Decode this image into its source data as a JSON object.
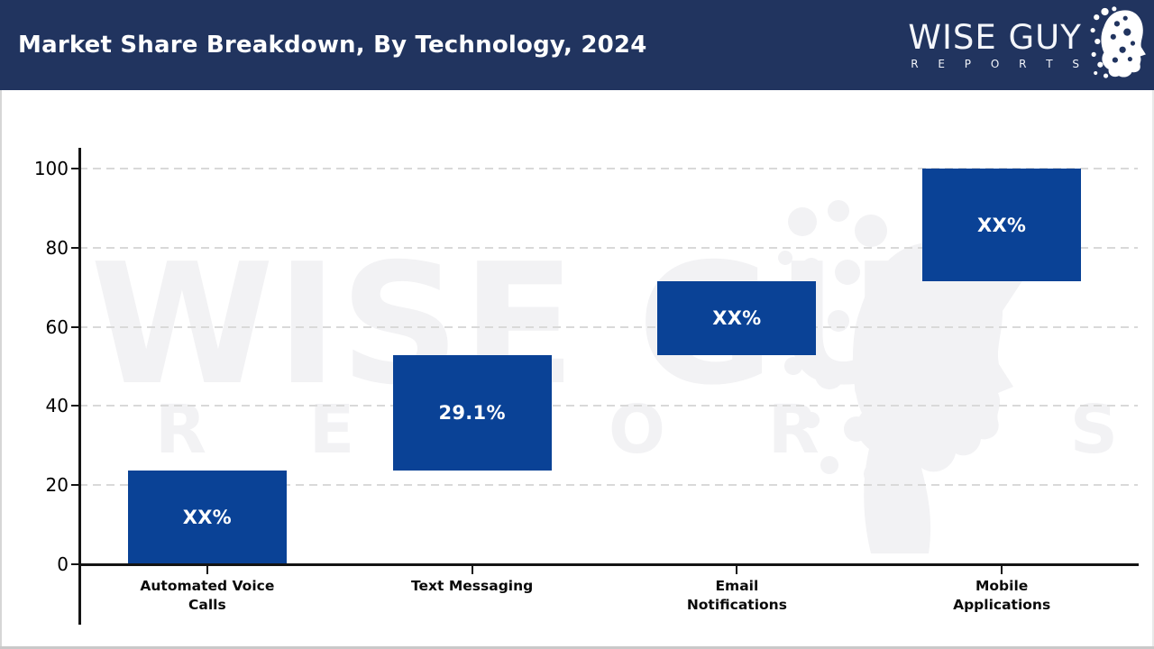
{
  "header": {
    "title": "Market Share Breakdown, By Technology, 2024",
    "bg_color": "#21345f",
    "logo": {
      "line1": "WISE GUY",
      "line2": "R E P O R T S"
    }
  },
  "watermark": {
    "line1": "WISE GUY",
    "line2": "R E P O R T S"
  },
  "chart_data": {
    "type": "bar",
    "variant": "floating-waterfall",
    "title": "Market Share Breakdown, By Technology, 2024",
    "categories": [
      "Automated Voice Calls",
      "Text Messaging",
      "Email Notifications",
      "Mobile Applications"
    ],
    "yticks": [
      0,
      20,
      40,
      60,
      80,
      100
    ],
    "ylim": [
      0,
      100
    ],
    "grid": {
      "horizontal": true,
      "style": "dashed",
      "color": "#d9d9d9"
    },
    "bar_color": "#0a4296",
    "bar_label_color": "#ffffff",
    "legend": "none",
    "segments": [
      {
        "category": "Automated Voice Calls",
        "category_lines": [
          "Automated Voice",
          "Calls"
        ],
        "start": 0,
        "end": 23.7,
        "value_label": "XX%"
      },
      {
        "category": "Text Messaging",
        "category_lines": [
          "Text Messaging"
        ],
        "start": 23.7,
        "end": 52.8,
        "value": 29.1,
        "value_label": "29.1%"
      },
      {
        "category": "Email Notifications",
        "category_lines": [
          "Email",
          "Notifications"
        ],
        "start": 52.8,
        "end": 71.5,
        "value_label": "XX%"
      },
      {
        "category": "Mobile Applications",
        "category_lines": [
          "Mobile",
          "Applications"
        ],
        "start": 71.5,
        "end": 100,
        "value_label": "XX%"
      }
    ]
  }
}
